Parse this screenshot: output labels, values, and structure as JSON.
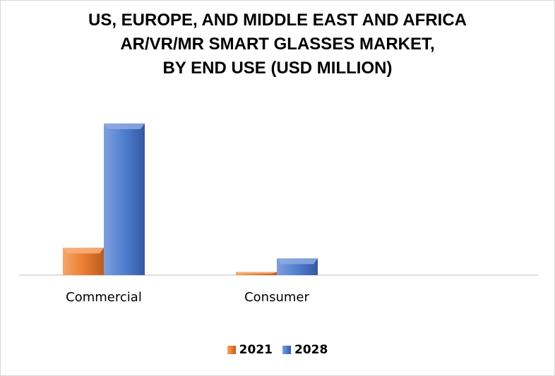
{
  "chart_data": {
    "type": "bar",
    "title_lines": [
      "US, EUROPE, AND MIDDLE EAST AND AFRICA",
      "AR/VR/MR SMART GLASSES MARKET,",
      "BY END USE (USD MILLION)"
    ],
    "categories": [
      "Commercial",
      "Consumer"
    ],
    "series": [
      {
        "name": "2021",
        "values": [
          18,
          2
        ],
        "color": "#ed7d31"
      },
      {
        "name": "2028",
        "values": [
          100,
          11
        ],
        "color": "#4472c4"
      }
    ],
    "ylim": [
      0,
      100
    ],
    "grid": false,
    "legend_position": "bottom"
  }
}
